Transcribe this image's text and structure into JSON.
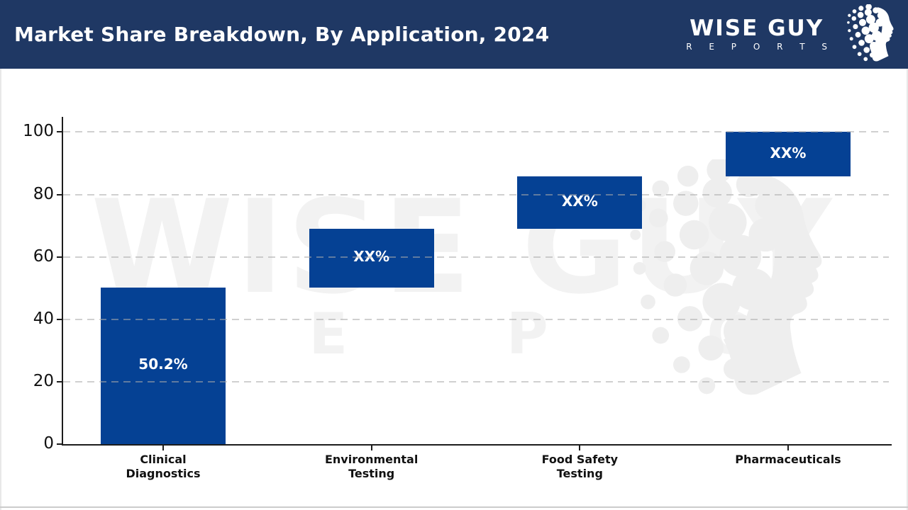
{
  "header": {
    "title": "Market Share Breakdown, By Application, 2024",
    "logo": {
      "line1": "WISE GUY",
      "line2": "R E P O R T S"
    }
  },
  "watermark": {
    "line1": "WISE GUY",
    "line2": "R E P O R T S"
  },
  "colors": {
    "header_bg": "#1f3864",
    "bar_blue": "#054194",
    "grid_gray": "#aaaaaa",
    "watermark_gray": "#f2f2f2",
    "text_black": "#111111",
    "white": "#ffffff"
  },
  "chart_data": {
    "type": "bar",
    "subtype": "waterfall",
    "title": "Market Share Breakdown, By Application, 2024",
    "categories": [
      "Clinical\nDiagnostics",
      "Environmental\nTesting",
      "Food Safety\nTesting",
      "Pharmaceuticals"
    ],
    "bars": [
      {
        "category": "Clinical Diagnostics",
        "start": 0,
        "end": 50.2,
        "value": 50.2,
        "label": "50.2%"
      },
      {
        "category": "Environmental Testing",
        "start": 50.2,
        "end": 69.0,
        "value": 18.8,
        "label": "XX%"
      },
      {
        "category": "Food Safety Testing",
        "start": 69.0,
        "end": 85.8,
        "value": 16.8,
        "label": "XX%"
      },
      {
        "category": "Pharmaceuticals",
        "start": 85.8,
        "end": 100,
        "value": 14.2,
        "label": "XX%"
      }
    ],
    "ylim": [
      0,
      100
    ],
    "yticks": [
      0,
      20,
      40,
      60,
      80,
      100
    ],
    "xlabel": "",
    "ylabel": "",
    "grid": "dashed horizontal, drawn over bars",
    "legend": false,
    "bar_color": "#054194"
  }
}
